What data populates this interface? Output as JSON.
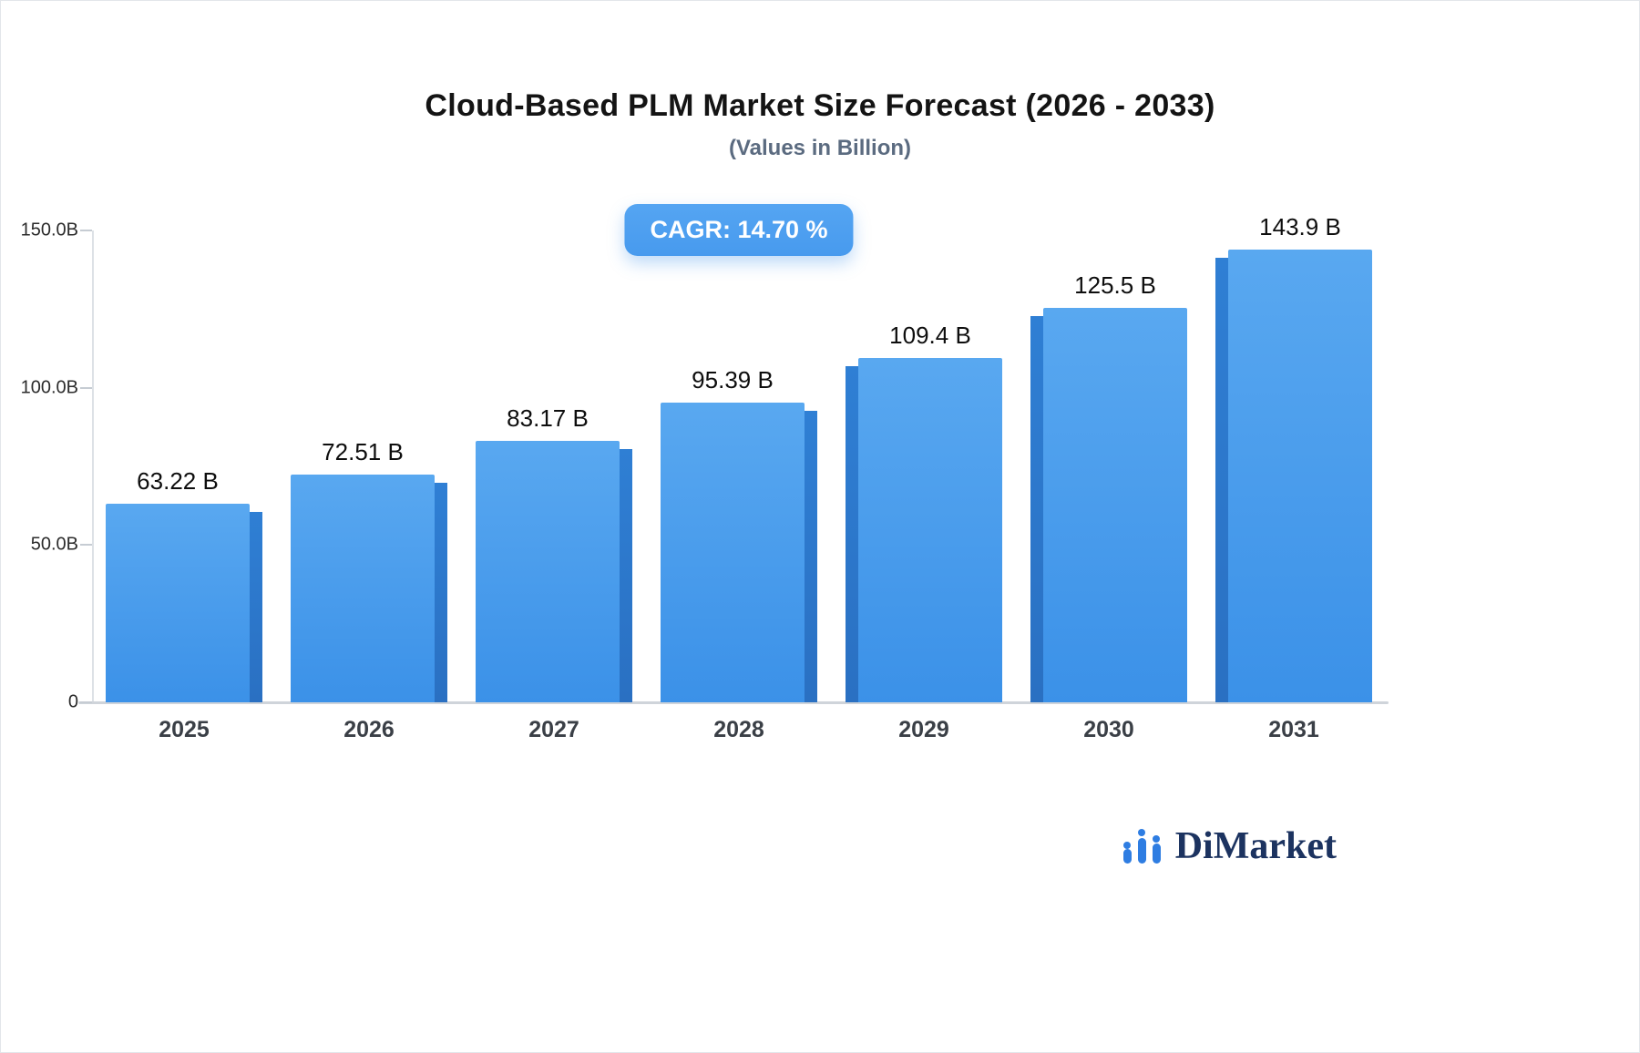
{
  "header": {
    "title": "Cloud-Based PLM Market Size Forecast (2026 - 2033)",
    "subtitle": "(Values in Billion)"
  },
  "badge": {
    "label": "CAGR: 14.70 %"
  },
  "brand": {
    "name": "DiMarket"
  },
  "chart_data": {
    "type": "bar",
    "title": "Cloud-Based PLM Market Size Forecast (2026 - 2033)",
    "subtitle": "(Values in Billion)",
    "categories": [
      "2025",
      "2026",
      "2027",
      "2028",
      "2029",
      "2030",
      "2031"
    ],
    "values": [
      63.22,
      72.51,
      83.17,
      95.39,
      109.4,
      125.5,
      143.9
    ],
    "value_labels": [
      "63.22 B",
      "72.51 B",
      "83.17 B",
      "95.39 B",
      "109.4 B",
      "125.5 B",
      "143.9 B"
    ],
    "xlabel": "",
    "ylabel": "",
    "ylim": [
      0,
      150
    ],
    "yticks": [
      {
        "value": 150,
        "label": "150.0B"
      },
      {
        "value": 100,
        "label": "100.0B"
      },
      {
        "value": 50,
        "label": "50.0B"
      },
      {
        "value": 0,
        "label": "0"
      }
    ],
    "grid": false,
    "legend": "none",
    "annotations": [
      "CAGR: 14.70 %"
    ],
    "colors": {
      "bar_main_top": "#59a8f0",
      "bar_main_bottom": "#3b91e8",
      "bar_side": "#2f7fd4",
      "badge_bg": "#479aee",
      "title_text": "#141414",
      "subtitle_text": "#5b6b80",
      "brand_navy": "#1c3360",
      "brand_blue": "#2e7de2"
    }
  }
}
